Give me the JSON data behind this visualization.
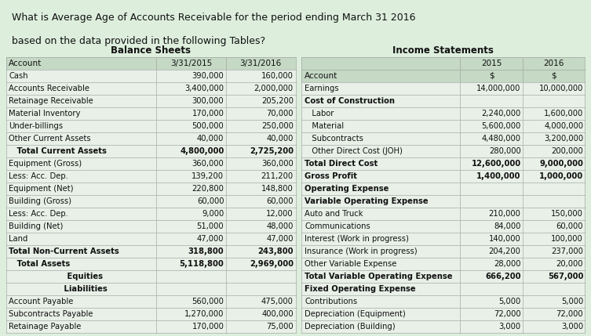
{
  "title_line1": "What is Average Age of Accounts Receivable for the period ending March 31 2016",
  "title_line2": "based on the data provided in the following Tables?",
  "balance_sheet_title": "Balance Sheets",
  "bs_headers": [
    "Account",
    "3/31/2015",
    "3/31/2016"
  ],
  "bs_rows": [
    [
      "Cash",
      "390,000",
      "160,000"
    ],
    [
      "Accounts Receivable",
      "3,400,000",
      "2,000,000"
    ],
    [
      "Retainage Receivable",
      "300,000",
      "205,200"
    ],
    [
      "Material Inventory",
      "170,000",
      "70,000"
    ],
    [
      "Under-billings",
      "500,000",
      "250,000"
    ],
    [
      "Other Current Assets",
      "40,000",
      "40,000"
    ],
    [
      "   Total Current Assets",
      "4,800,000",
      "2,725,200"
    ],
    [
      "Equipment (Gross)",
      "360,000",
      "360,000"
    ],
    [
      "Less: Acc. Dep.",
      "139,200",
      "211,200"
    ],
    [
      "Equipment (Net)",
      "220,800",
      "148,800"
    ],
    [
      "Building (Gross)",
      "60,000",
      "60,000"
    ],
    [
      "Less: Acc. Dep.",
      "9,000",
      "12,000"
    ],
    [
      "Building (Net)",
      "51,000",
      "48,000"
    ],
    [
      "Land",
      "47,000",
      "47,000"
    ],
    [
      "Total Non-Current Assets",
      "318,800",
      "243,800"
    ],
    [
      "   Total Assets",
      "5,118,800",
      "2,969,000"
    ],
    [
      "   Equities",
      "",
      ""
    ],
    [
      "   Liabilities",
      "",
      ""
    ],
    [
      "Account Payable",
      "560,000",
      "475,000"
    ],
    [
      "Subcontracts Payable",
      "1,270,000",
      "400,000"
    ],
    [
      "Retainage Payable",
      "170,000",
      "75,000"
    ]
  ],
  "income_stmt_title": "Income Statements",
  "is_header_row0": [
    "",
    "2015",
    "2016"
  ],
  "is_header_row1": [
    "Account",
    "$",
    "$"
  ],
  "is_rows": [
    [
      "Earnings",
      "14,000,000",
      "10,000,000"
    ],
    [
      "Cost of Construction",
      "",
      ""
    ],
    [
      "   Labor",
      "2,240,000",
      "1,600,000"
    ],
    [
      "   Material",
      "5,600,000",
      "4,000,000"
    ],
    [
      "   Subcontracts",
      "4,480,000",
      "3,200,000"
    ],
    [
      "   Other Direct Cost (JOH)",
      "280,000",
      "200,000"
    ],
    [
      "Total Direct Cost",
      "12,600,000",
      "9,000,000"
    ],
    [
      "Gross Profit",
      "1,400,000",
      "1,000,000"
    ],
    [
      "Operating Expense",
      "",
      ""
    ],
    [
      "Variable Operating Expense",
      "",
      ""
    ],
    [
      "Auto and Truck",
      "210,000",
      "150,000"
    ],
    [
      "Communications",
      "84,000",
      "60,000"
    ],
    [
      "Interest (Work in progress)",
      "140,000",
      "100,000"
    ],
    [
      "Insurance (Work in progress)",
      "204,200",
      "237,000"
    ],
    [
      "Other Variable Expense",
      "28,000",
      "20,000"
    ],
    [
      "Total Variable Operating Expense",
      "666,200",
      "567,000"
    ],
    [
      "Fixed Operating Expense",
      "",
      ""
    ],
    [
      "Contributions",
      "5,000",
      "5,000"
    ],
    [
      "Depreciation (Equipment)",
      "72,000",
      "72,000"
    ],
    [
      "Depreciation (Building)",
      "3,000",
      "3,000"
    ]
  ],
  "bg_color": "#ddeedd",
  "header_bg": "#c5d9c5",
  "cell_bg": "#e8f0e8",
  "border_color": "#999999",
  "text_color": "#111111",
  "title_fontsize": 9.0,
  "table_title_fontsize": 8.5,
  "cell_fontsize": 7.2,
  "bs_bold_rows": [
    "Total Current Assets",
    "Total Non-Current Assets",
    "Total Assets",
    "Equities",
    "Liabilities"
  ],
  "is_bold_rows": [
    "Total Direct Cost",
    "Gross Profit",
    "Total Variable Operating Expense",
    "Cost of Construction",
    "Operating Expense",
    "Variable Operating Expense",
    "Fixed Operating Expense"
  ]
}
